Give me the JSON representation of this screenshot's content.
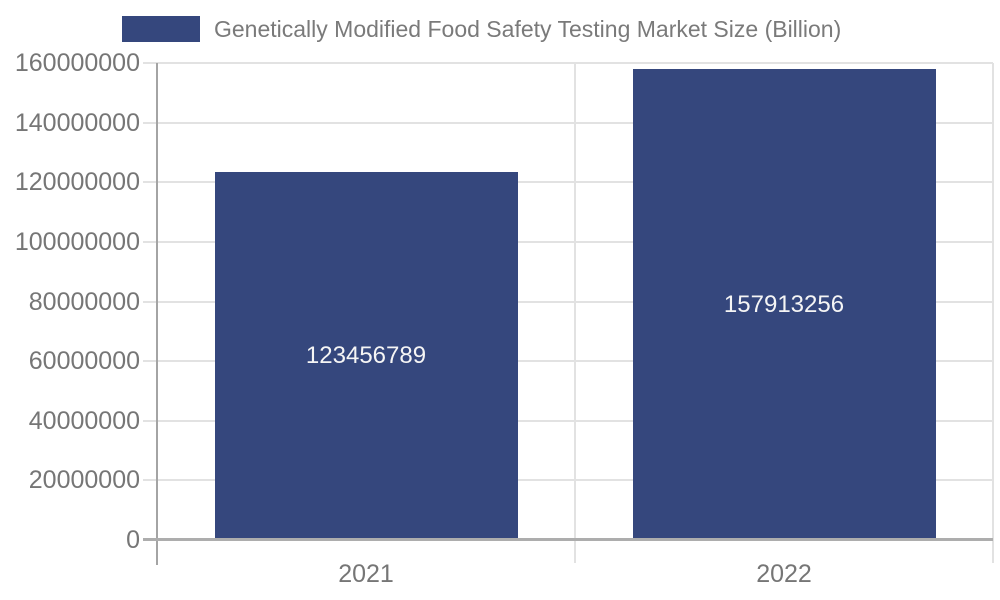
{
  "chart_data": {
    "type": "bar",
    "title": "Genetically Modified Food Safety Testing Market Size (Billion)",
    "categories": [
      "2021",
      "2022"
    ],
    "series": [
      {
        "name": "Genetically Modified Food Safety Testing Market Size (Billion)",
        "values": [
          123456789,
          157913256
        ]
      }
    ],
    "value_labels": [
      "123456789",
      "157913256"
    ],
    "xlabel": "",
    "ylabel": "",
    "ylim": [
      0,
      160000000
    ],
    "y_ticks": [
      0,
      20000000,
      40000000,
      60000000,
      80000000,
      100000000,
      120000000,
      140000000,
      160000000
    ],
    "y_tick_labels": [
      "0",
      "20000000",
      "40000000",
      "60000000",
      "80000000",
      "100000000",
      "120000000",
      "140000000",
      "160000000"
    ],
    "grid": true,
    "legend_position": "top-left"
  },
  "colors": {
    "bar": "#35477D",
    "gridline": "#e2e2e2",
    "axis_left": "#a4a4a4",
    "axis_bottom": "#adadad",
    "tick_label": "#767676",
    "title_text": "#7a7a7a",
    "value_label": "#f5f5f5",
    "background": "#ffffff"
  }
}
